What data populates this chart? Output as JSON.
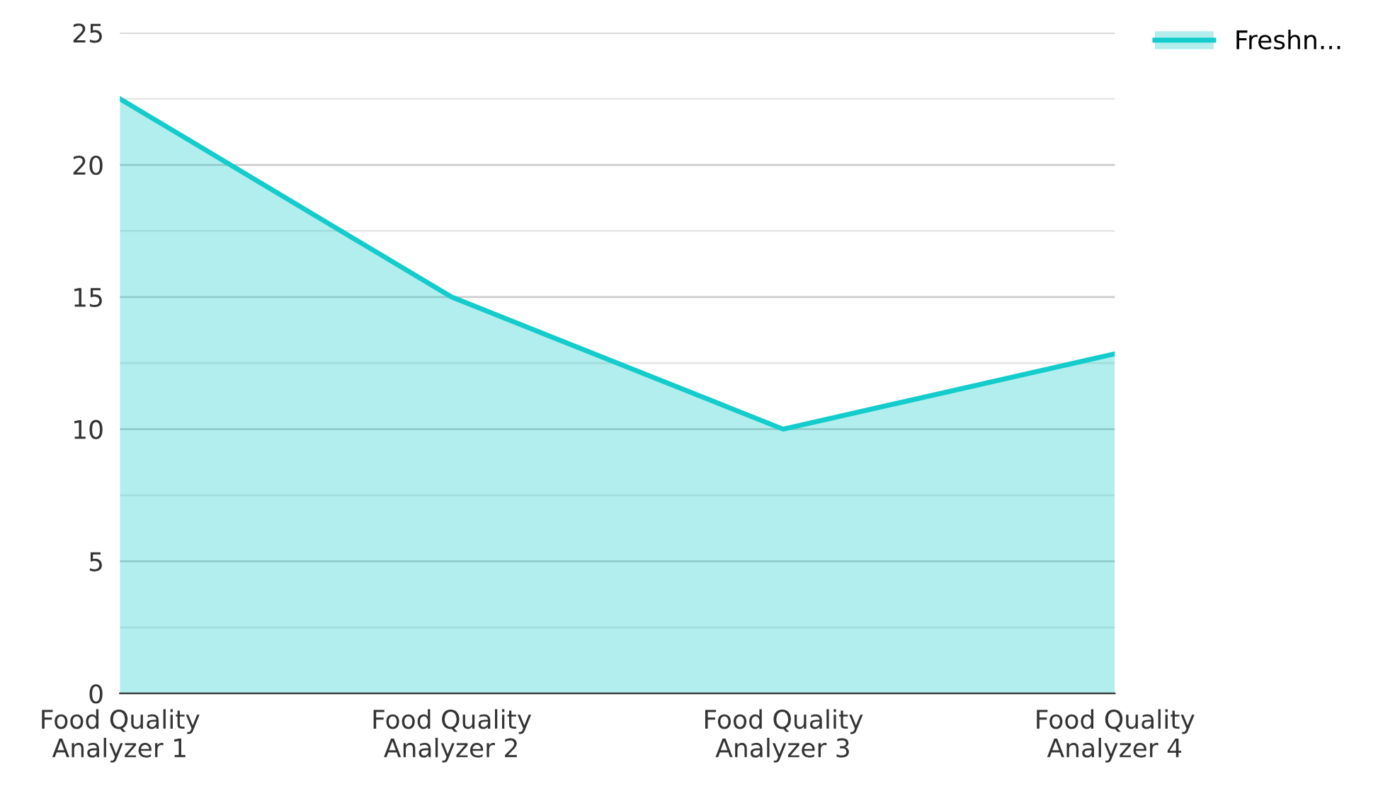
{
  "chart_data": {
    "type": "area",
    "categories": [
      "Food Quality\nAnalyzer 1",
      "Food Quality\nAnalyzer 2",
      "Food Quality\nAnalyzer 3",
      "Food Quality\nAnalyzer 4"
    ],
    "series": [
      {
        "name": "Freshn...",
        "color": "#14cccc",
        "values": [
          22.5,
          15,
          10,
          12.85
        ]
      }
    ],
    "ylim": [
      0,
      25
    ],
    "yticks": [
      0,
      {
        "value": 2.5,
        "label": null
      },
      5,
      {
        "value": 7.5,
        "label": null
      },
      10,
      {
        "value": 12.5,
        "label": null
      },
      15,
      {
        "value": 17.5,
        "label": null
      },
      20,
      {
        "value": 22.5,
        "label": null
      },
      25
    ],
    "grid": "y",
    "legend": "top right"
  }
}
